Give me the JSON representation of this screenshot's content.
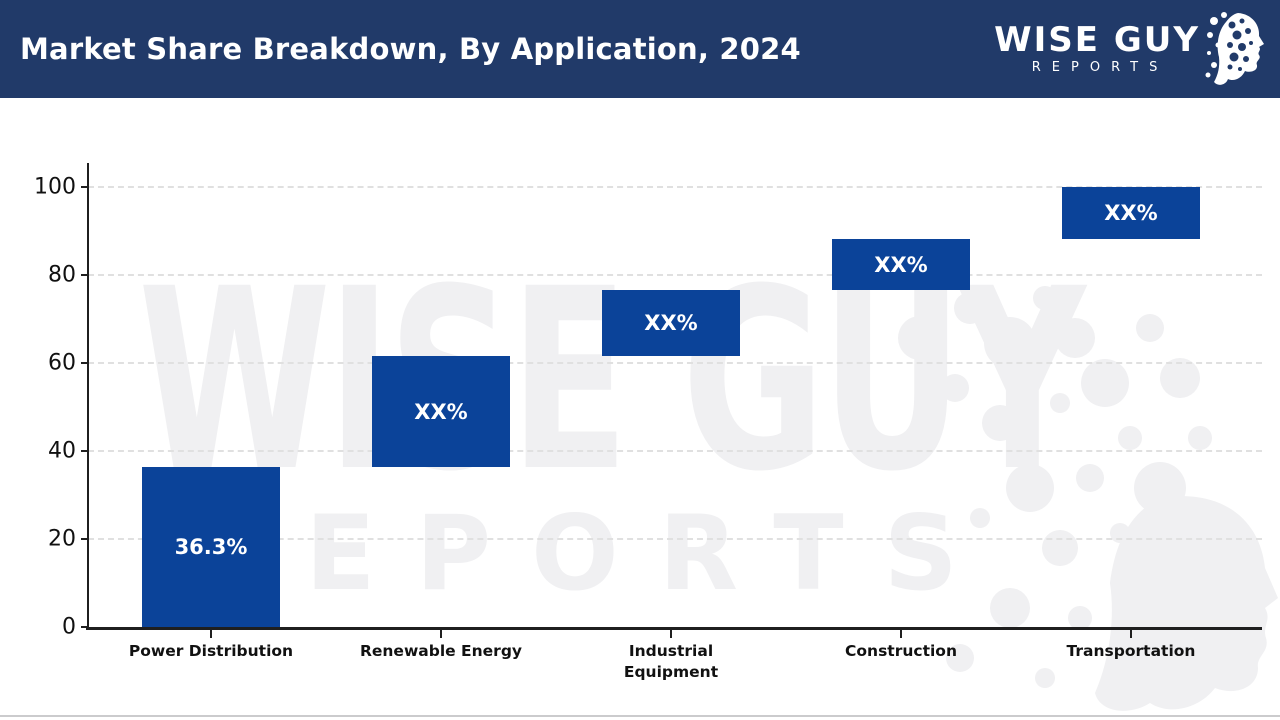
{
  "header": {
    "title": "Market Share Breakdown, By Application, 2024",
    "logo": {
      "name_top": "WISE GUY",
      "name_bottom": "REPORTS"
    }
  },
  "watermark": {
    "line1": "WISE GUY",
    "line2": "REPORTS"
  },
  "colors": {
    "header_bg": "#213a69",
    "bar": "#0b4399",
    "bar_label": "#ffffff",
    "axis": "#1f1f1f",
    "grid": "#e0e0e0",
    "watermark": "#f0f0f2"
  },
  "chart_data": {
    "type": "bar",
    "subtype": "waterfall",
    "title": "Market Share Breakdown, By Application, 2024",
    "xlabel": "",
    "ylabel": "",
    "ylim": [
      0,
      105
    ],
    "yticks": [
      0,
      20,
      40,
      60,
      80,
      100
    ],
    "grid": "horizontal-dashed",
    "legend": "none",
    "categories": [
      "Power Distribution",
      "Renewable Energy",
      "Industrial\nEquipment",
      "Construction",
      "Transportation"
    ],
    "series": [
      {
        "name": "Market share (%)",
        "segments": [
          {
            "category": "Power Distribution",
            "start": 0,
            "end": 36.3,
            "label": "36.3%"
          },
          {
            "category": "Renewable Energy",
            "start": 36.3,
            "end": 61.5,
            "label": "XX%"
          },
          {
            "category": "Industrial Equipment",
            "start": 61.5,
            "end": 76.4,
            "label": "XX%"
          },
          {
            "category": "Construction",
            "start": 76.4,
            "end": 88.0,
            "label": "XX%"
          },
          {
            "category": "Transportation",
            "start": 88.0,
            "end": 100.0,
            "label": "XX%"
          }
        ]
      }
    ]
  }
}
